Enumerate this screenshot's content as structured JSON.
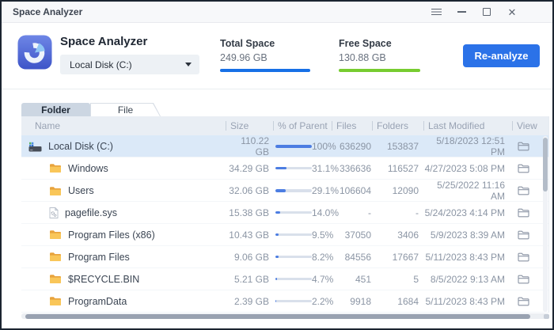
{
  "window": {
    "title": "Space Analyzer"
  },
  "header": {
    "app_title": "Space Analyzer",
    "drive_selector_value": "Local Disk (C:)",
    "total_space": {
      "label": "Total Space",
      "value": "249.96 GB",
      "bar_color": "#1770e6"
    },
    "free_space": {
      "label": "Free Space",
      "value": "130.88 GB",
      "bar_color": "#77cc30"
    },
    "reanalyze_label": "Re-analyze"
  },
  "tabs": [
    {
      "label": "Folder",
      "active": true
    },
    {
      "label": "File",
      "active": false
    }
  ],
  "table": {
    "columns": [
      "Name",
      "Size",
      "% of Parent",
      "Files",
      "Folders",
      "Last Modified",
      "View"
    ],
    "rows": [
      {
        "name": "Local Disk (C:)",
        "icon": "drive",
        "indent": 0,
        "selected": true,
        "size": "110.22 GB",
        "percent": "100%",
        "percent_value": 100,
        "files": "636290",
        "folders": "153837",
        "modified": "5/18/2023 12:51 PM"
      },
      {
        "name": "Windows",
        "icon": "folder",
        "indent": 1,
        "selected": false,
        "size": "34.29 GB",
        "percent": "31.1%",
        "percent_value": 31.1,
        "files": "336636",
        "folders": "116527",
        "modified": "4/27/2023 5:08 PM"
      },
      {
        "name": "Users",
        "icon": "folder",
        "indent": 1,
        "selected": false,
        "size": "32.06 GB",
        "percent": "29.1%",
        "percent_value": 29.1,
        "files": "106604",
        "folders": "12090",
        "modified": "5/25/2022 11:16 AM"
      },
      {
        "name": "pagefile.sys",
        "icon": "file",
        "indent": 1,
        "selected": false,
        "size": "15.38 GB",
        "percent": "14.0%",
        "percent_value": 14.0,
        "files": "-",
        "folders": "-",
        "modified": "5/24/2023 4:14 PM"
      },
      {
        "name": "Program Files (x86)",
        "icon": "folder",
        "indent": 1,
        "selected": false,
        "size": "10.43 GB",
        "percent": "9.5%",
        "percent_value": 9.5,
        "files": "37050",
        "folders": "3406",
        "modified": "5/9/2023 8:39 AM"
      },
      {
        "name": "Program Files",
        "icon": "folder",
        "indent": 1,
        "selected": false,
        "size": "9.06 GB",
        "percent": "8.2%",
        "percent_value": 8.2,
        "files": "84556",
        "folders": "17667",
        "modified": "5/11/2023 8:43 PM"
      },
      {
        "name": "$RECYCLE.BIN",
        "icon": "folder",
        "indent": 1,
        "selected": false,
        "size": "5.21 GB",
        "percent": "4.7%",
        "percent_value": 4.7,
        "files": "451",
        "folders": "5",
        "modified": "8/5/2022 9:13 AM"
      },
      {
        "name": "ProgramData",
        "icon": "folder",
        "indent": 1,
        "selected": false,
        "size": "2.39 GB",
        "percent": "2.2%",
        "percent_value": 2.2,
        "files": "9918",
        "folders": "1684",
        "modified": "5/11/2023 8:43 PM"
      }
    ]
  }
}
